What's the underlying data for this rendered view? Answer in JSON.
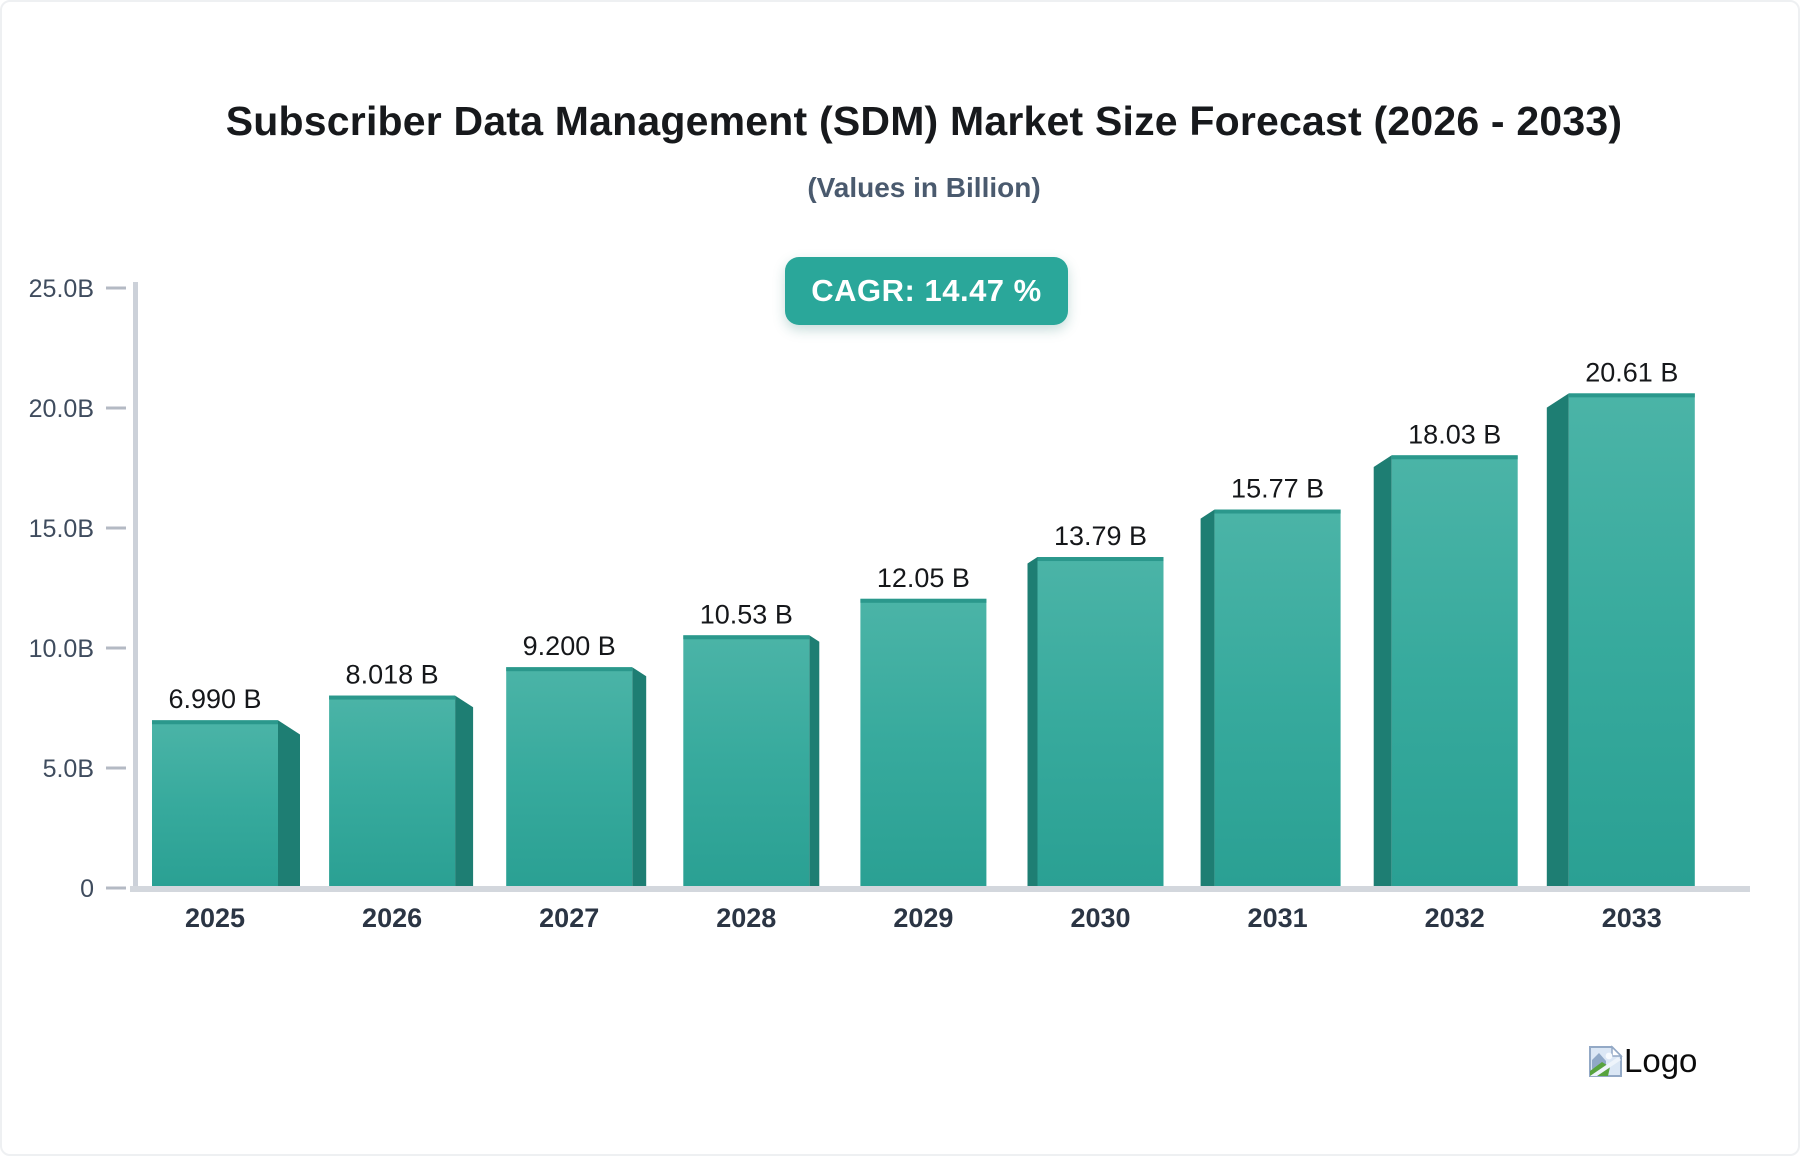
{
  "header": {
    "title": "Subscriber Data Management (SDM) Market Size Forecast (2026 - 2033)",
    "subtitle": "(Values in Billion)"
  },
  "badge": {
    "label": "CAGR: 14.47 %"
  },
  "logo": {
    "alt_text": "Logo"
  },
  "colors": {
    "accent_teal": "#2aa79a",
    "bar_front_top": "#4bb4a7",
    "bar_front_bottom": "#2aa093",
    "bar_side_face": "#1e7e73",
    "bar_top_edge": "#2b988c",
    "axis_line": "#ccd1d9",
    "tick_mark": "#b4bac4",
    "y_tick_label": "#3f4c5e",
    "x_tick_label": "#2b3544",
    "value_label": "#15171a",
    "badge_text": "#ffffff"
  },
  "chart_data": {
    "type": "bar",
    "style": "3d-column",
    "title": "Subscriber Data Management (SDM) Market Size Forecast (2026 - 2033)",
    "subtitle": "(Values in Billion)",
    "cagr_annotation": "CAGR: 14.47 %",
    "categories": [
      "2025",
      "2026",
      "2027",
      "2028",
      "2029",
      "2030",
      "2031",
      "2032",
      "2033"
    ],
    "values": [
      6.99,
      8.018,
      9.2,
      10.53,
      12.05,
      13.79,
      15.77,
      18.03,
      20.61
    ],
    "bar_labels": [
      "6.990 B",
      "8.018 B",
      "9.200 B",
      "10.53 B",
      "12.05 B",
      "13.79 B",
      "15.77 B",
      "18.03 B",
      "20.61 B"
    ],
    "xlabel": "",
    "ylabel": "",
    "ylim": [
      0,
      25
    ],
    "y_ticks": [
      {
        "value": 0,
        "label": "0"
      },
      {
        "value": 5,
        "label": "5.0B"
      },
      {
        "value": 10,
        "label": "10.0B"
      },
      {
        "value": 15,
        "label": "15.0B"
      },
      {
        "value": 20,
        "label": "20.0B"
      },
      {
        "value": 25,
        "label": "25.0B"
      }
    ],
    "grid": false,
    "legend": "none",
    "units": "Billion"
  }
}
